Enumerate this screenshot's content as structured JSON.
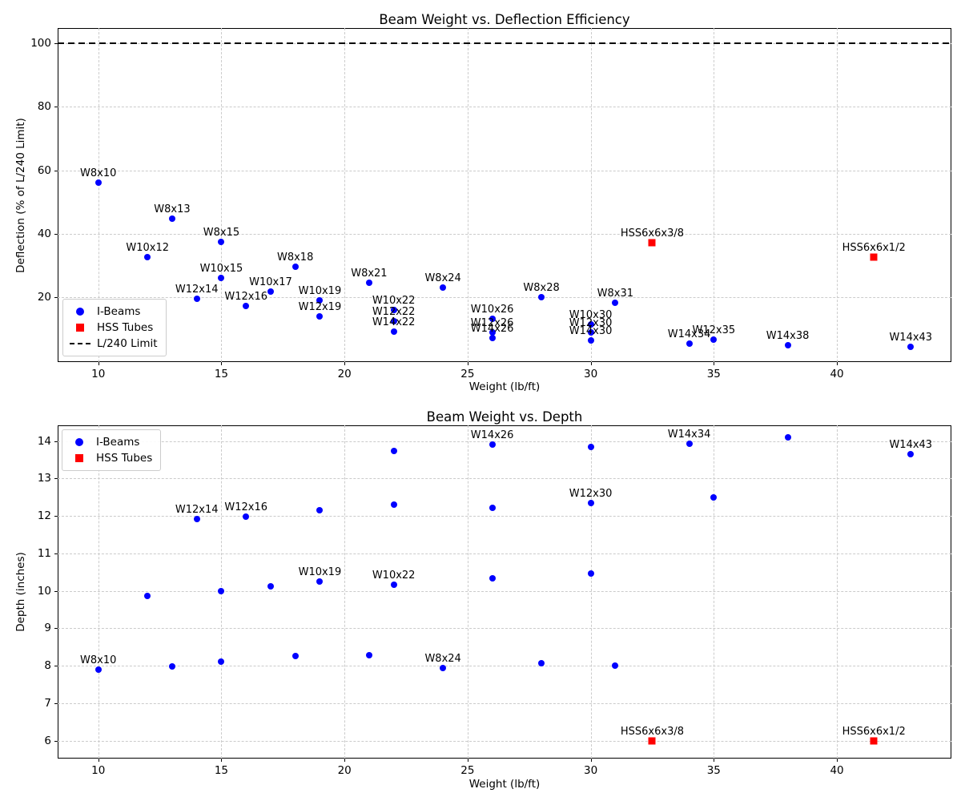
{
  "figure": {
    "background": "#ffffff"
  },
  "colors": {
    "ibeam": "#0000ff",
    "hss": "#ff0000",
    "limit_line": "#000000",
    "grid": "#cbcbcb",
    "text": "#000000"
  },
  "chart_data": [
    {
      "type": "scatter",
      "title": "Beam Weight vs. Deflection Efficiency",
      "xlabel": "Weight (lb/ft)",
      "ylabel": "Deflection (% of L/240 Limit)",
      "xlim": [
        8.35,
        44.65
      ],
      "ylim": [
        -0.4,
        104.8
      ],
      "xticks": [
        10,
        15,
        20,
        25,
        30,
        35,
        40
      ],
      "yticks": [
        20,
        40,
        60,
        80,
        100
      ],
      "grid": true,
      "limit_line": {
        "y": 100,
        "label": "L/240 Limit"
      },
      "legend": {
        "position": "lower left",
        "items": [
          {
            "label": "I-Beams",
            "marker": "circle",
            "color": "#0000ff"
          },
          {
            "label": "HSS Tubes",
            "marker": "square",
            "color": "#ff0000"
          },
          {
            "label": "L/240 Limit",
            "marker": "dashed-line",
            "color": "#000000"
          }
        ]
      },
      "series": [
        {
          "name": "I-Beams",
          "marker": "circle",
          "color": "#0000ff",
          "points": [
            {
              "label": "W8x10",
              "x": 10,
              "y": 56.0,
              "labeled": true
            },
            {
              "label": "W10x12",
              "x": 12,
              "y": 32.6,
              "labeled": true
            },
            {
              "label": "W8x13",
              "x": 13,
              "y": 44.8,
              "labeled": true
            },
            {
              "label": "W12x14",
              "x": 14,
              "y": 19.6,
              "labeled": true
            },
            {
              "label": "W8x15",
              "x": 15,
              "y": 37.5,
              "labeled": true
            },
            {
              "label": "W10x15",
              "x": 15,
              "y": 26.0,
              "labeled": true
            },
            {
              "label": "W12x16",
              "x": 16,
              "y": 17.2,
              "labeled": true
            },
            {
              "label": "W10x17",
              "x": 17,
              "y": 21.8,
              "labeled": true
            },
            {
              "label": "W8x18",
              "x": 18,
              "y": 29.6,
              "labeled": true
            },
            {
              "label": "W10x19",
              "x": 19,
              "y": 19.0,
              "labeled": true
            },
            {
              "label": "W12x19",
              "x": 19,
              "y": 14.0,
              "labeled": true
            },
            {
              "label": "W8x21",
              "x": 21,
              "y": 24.6,
              "labeled": true
            },
            {
              "label": "W10x22",
              "x": 22,
              "y": 16.0,
              "labeled": true
            },
            {
              "label": "W12x22",
              "x": 22,
              "y": 12.4,
              "labeled": true
            },
            {
              "label": "W14x22",
              "x": 22,
              "y": 9.3,
              "labeled": true
            },
            {
              "label": "W8x24",
              "x": 24,
              "y": 23.1,
              "labeled": true
            },
            {
              "label": "W10x26",
              "x": 26,
              "y": 13.1,
              "labeled": true
            },
            {
              "label": "W12x26",
              "x": 26,
              "y": 9.0,
              "labeled": true
            },
            {
              "label": "W14x26",
              "x": 26,
              "y": 7.2,
              "labeled": true
            },
            {
              "label": "W8x28",
              "x": 28,
              "y": 20.1,
              "labeled": true
            },
            {
              "label": "W10x30",
              "x": 30,
              "y": 11.5,
              "labeled": true
            },
            {
              "label": "W12x30",
              "x": 30,
              "y": 8.9,
              "labeled": true
            },
            {
              "label": "W14x30",
              "x": 30,
              "y": 6.5,
              "labeled": true
            },
            {
              "label": "W8x31",
              "x": 31,
              "y": 18.2,
              "labeled": true
            },
            {
              "label": "W14x34",
              "x": 34,
              "y": 5.5,
              "labeled": true
            },
            {
              "label": "W12x35",
              "x": 35,
              "y": 6.6,
              "labeled": true
            },
            {
              "label": "W14x38",
              "x": 38,
              "y": 5.0,
              "labeled": true
            },
            {
              "label": "W14x43",
              "x": 43,
              "y": 4.4,
              "labeled": true
            }
          ]
        },
        {
          "name": "HSS Tubes",
          "marker": "square",
          "color": "#ff0000",
          "points": [
            {
              "label": "HSS6x6x3/8",
              "x": 32.5,
              "y": 37.2,
              "labeled": true
            },
            {
              "label": "HSS6x6x1/2",
              "x": 41.5,
              "y": 32.6,
              "labeled": true
            }
          ]
        }
      ]
    },
    {
      "type": "scatter",
      "title": "Beam Weight vs. Depth",
      "xlabel": "Weight (lb/ft)",
      "ylabel": "Depth (inches)",
      "xlim": [
        8.35,
        44.65
      ],
      "ylim": [
        5.52,
        14.42
      ],
      "xticks": [
        10,
        15,
        20,
        25,
        30,
        35,
        40
      ],
      "yticks": [
        6,
        7,
        8,
        9,
        10,
        11,
        12,
        13,
        14
      ],
      "grid": true,
      "limit_line": null,
      "legend": {
        "position": "upper left",
        "items": [
          {
            "label": "I-Beams",
            "marker": "circle",
            "color": "#0000ff"
          },
          {
            "label": "HSS Tubes",
            "marker": "square",
            "color": "#ff0000"
          }
        ]
      },
      "series": [
        {
          "name": "I-Beams",
          "marker": "circle",
          "color": "#0000ff",
          "points": [
            {
              "label": "W8x10",
              "x": 10,
              "y": 7.89,
              "labeled": true
            },
            {
              "label": "W10x12",
              "x": 12,
              "y": 9.87,
              "labeled": false
            },
            {
              "label": "W8x13",
              "x": 13,
              "y": 7.99,
              "labeled": false
            },
            {
              "label": "W12x14",
              "x": 14,
              "y": 11.91,
              "labeled": true
            },
            {
              "label": "W8x15",
              "x": 15,
              "y": 8.11,
              "labeled": false
            },
            {
              "label": "W10x15",
              "x": 15,
              "y": 9.99,
              "labeled": false
            },
            {
              "label": "W12x16",
              "x": 16,
              "y": 11.99,
              "labeled": true
            },
            {
              "label": "W10x17",
              "x": 17,
              "y": 10.11,
              "labeled": false
            },
            {
              "label": "W8x18",
              "x": 18,
              "y": 8.26,
              "labeled": false
            },
            {
              "label": "W10x19",
              "x": 19,
              "y": 10.24,
              "labeled": true
            },
            {
              "label": "W12x19",
              "x": 19,
              "y": 12.16,
              "labeled": false
            },
            {
              "label": "W8x21",
              "x": 21,
              "y": 8.28,
              "labeled": false
            },
            {
              "label": "W10x22",
              "x": 22,
              "y": 10.17,
              "labeled": true
            },
            {
              "label": "W12x22",
              "x": 22,
              "y": 12.31,
              "labeled": false
            },
            {
              "label": "W14x22",
              "x": 22,
              "y": 13.74,
              "labeled": false
            },
            {
              "label": "W8x24",
              "x": 24,
              "y": 7.93,
              "labeled": true
            },
            {
              "label": "W10x26",
              "x": 26,
              "y": 10.33,
              "labeled": false
            },
            {
              "label": "W12x26",
              "x": 26,
              "y": 12.22,
              "labeled": false
            },
            {
              "label": "W14x26",
              "x": 26,
              "y": 13.91,
              "labeled": true
            },
            {
              "label": "W8x28",
              "x": 28,
              "y": 8.06,
              "labeled": false
            },
            {
              "label": "W10x30",
              "x": 30,
              "y": 10.47,
              "labeled": false
            },
            {
              "label": "W12x30",
              "x": 30,
              "y": 12.34,
              "labeled": true
            },
            {
              "label": "W14x30",
              "x": 30,
              "y": 13.84,
              "labeled": false
            },
            {
              "label": "W8x31",
              "x": 31,
              "y": 8.0,
              "labeled": false
            },
            {
              "label": "W14x34",
              "x": 34,
              "y": 13.93,
              "labeled": true
            },
            {
              "label": "W12x35",
              "x": 35,
              "y": 12.5,
              "labeled": false
            },
            {
              "label": "W14x38",
              "x": 38,
              "y": 14.1,
              "labeled": false
            },
            {
              "label": "W14x43",
              "x": 43,
              "y": 13.66,
              "labeled": true
            }
          ]
        },
        {
          "name": "HSS Tubes",
          "marker": "square",
          "color": "#ff0000",
          "points": [
            {
              "label": "HSS6x6x3/8",
              "x": 32.5,
              "y": 6.0,
              "labeled": true
            },
            {
              "label": "HSS6x6x1/2",
              "x": 41.5,
              "y": 6.0,
              "labeled": true
            }
          ]
        }
      ]
    }
  ]
}
